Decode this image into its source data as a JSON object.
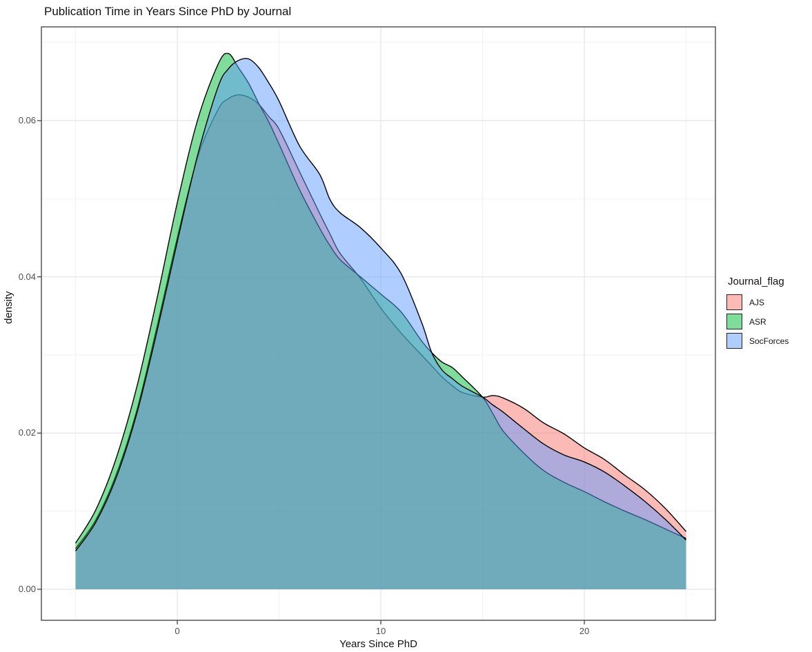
{
  "title": "Publication Time in Years Since PhD by Journal",
  "axes": {
    "x_label": "Years Since PhD",
    "y_label": "density",
    "x_tick_labels": [
      "0",
      "10",
      "20"
    ],
    "x_tick_values": [
      0,
      10,
      20
    ],
    "x_minor_values": [
      -5,
      5,
      15,
      25
    ],
    "y_tick_labels": [
      "0.00",
      "0.02",
      "0.04",
      "0.06"
    ],
    "y_tick_values": [
      0,
      0.02,
      0.04,
      0.06
    ],
    "y_minor_values": [
      0.01,
      0.03,
      0.05,
      0.07
    ]
  },
  "legend": {
    "title": "Journal_flag",
    "items": [
      {
        "label": "AJS",
        "color": "#F8766D"
      },
      {
        "label": "ASR",
        "color": "#00BA38"
      },
      {
        "label": "SocForces",
        "color": "#619CFF"
      }
    ]
  },
  "style": {
    "fill_alpha": 0.5,
    "outline_color": "#000000",
    "panel_border_color": "#2b2b2b",
    "grid_major_color": "#e4e4e4",
    "grid_minor_color": "#f2f2f2",
    "tick_mark_color": "#333333"
  },
  "chart_data": {
    "type": "area",
    "subtype": "overlapping-density",
    "title": "Publication Time in Years Since PhD by Journal",
    "xlabel": "Years Since PhD",
    "ylabel": "density",
    "xlim": [
      -6.7,
      26.4
    ],
    "ylim": [
      0,
      0.072
    ],
    "data_x_range": [
      -5,
      25
    ],
    "grid": "on",
    "legend_position": "right",
    "x": [
      -5,
      -4,
      -3,
      -2,
      -1,
      0,
      1,
      2,
      2.5,
      3,
      3.5,
      4,
      4.5,
      5,
      6,
      7,
      7.5,
      8,
      9,
      10,
      11,
      12,
      12.5,
      13,
      13.5,
      14,
      15,
      15.5,
      16,
      17,
      18,
      19,
      20,
      21,
      22,
      23,
      24,
      25
    ],
    "series": [
      {
        "name": "AJS",
        "color": "#F8766D",
        "values": [
          0.0052,
          0.0089,
          0.0147,
          0.0228,
          0.0336,
          0.045,
          0.0553,
          0.0614,
          0.0628,
          0.0633,
          0.063,
          0.0621,
          0.0605,
          0.0589,
          0.0535,
          0.0481,
          0.0455,
          0.043,
          0.0398,
          0.036,
          0.0328,
          0.03,
          0.0286,
          0.0272,
          0.0261,
          0.0252,
          0.0246,
          0.0248,
          0.0245,
          0.0232,
          0.0213,
          0.0199,
          0.0181,
          0.0166,
          0.0146,
          0.0127,
          0.0103,
          0.0074
        ]
      },
      {
        "name": "ASR",
        "color": "#00BA38",
        "values": [
          0.0059,
          0.0102,
          0.0168,
          0.0258,
          0.0372,
          0.0495,
          0.0601,
          0.0672,
          0.0686,
          0.0668,
          0.0648,
          0.0622,
          0.0598,
          0.057,
          0.0512,
          0.0462,
          0.044,
          0.0422,
          0.04,
          0.0378,
          0.0355,
          0.0318,
          0.0303,
          0.0291,
          0.0284,
          0.0272,
          0.0246,
          0.0225,
          0.0203,
          0.0175,
          0.0152,
          0.0137,
          0.0125,
          0.0112,
          0.01,
          0.0089,
          0.0077,
          0.0065
        ]
      },
      {
        "name": "SocForces",
        "color": "#619CFF",
        "values": [
          0.0049,
          0.0086,
          0.0143,
          0.0224,
          0.033,
          0.0445,
          0.0556,
          0.0643,
          0.0666,
          0.0677,
          0.0679,
          0.0668,
          0.0648,
          0.0625,
          0.0568,
          0.0531,
          0.0499,
          0.0482,
          0.0463,
          0.0437,
          0.0404,
          0.0342,
          0.0303,
          0.0281,
          0.027,
          0.026,
          0.0246,
          0.0236,
          0.0227,
          0.0206,
          0.0186,
          0.0172,
          0.0163,
          0.015,
          0.0132,
          0.0112,
          0.0089,
          0.0063
        ]
      }
    ]
  }
}
